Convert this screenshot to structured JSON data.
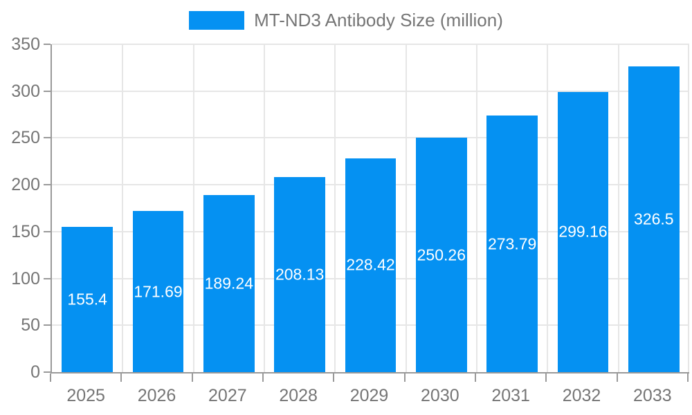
{
  "legend": {
    "label": "MT-ND3 Antibody Size (million)"
  },
  "chart_data": {
    "type": "bar",
    "title": "MT-ND3 Antibody Size (million)",
    "categories": [
      "2025",
      "2026",
      "2027",
      "2028",
      "2029",
      "2030",
      "2031",
      "2032",
      "2033"
    ],
    "values": [
      155.4,
      171.69,
      189.24,
      208.13,
      228.42,
      250.26,
      273.79,
      299.16,
      326.5
    ],
    "xlabel": "",
    "ylabel": "",
    "ylim": [
      0,
      350
    ],
    "ytick_step": 50,
    "yticks": [
      0,
      50,
      100,
      150,
      200,
      250,
      300,
      350
    ],
    "grid": true,
    "legend_position": "top-center",
    "value_labels": "inside-center",
    "colors": {
      "bar": "#0591f2",
      "bar_value_text": "#ffffff",
      "axis_line": "#999999",
      "gridline": "#e6e6e6",
      "tick_text": "#757575",
      "legend_text": "#757575",
      "background": "#ffffff"
    }
  }
}
